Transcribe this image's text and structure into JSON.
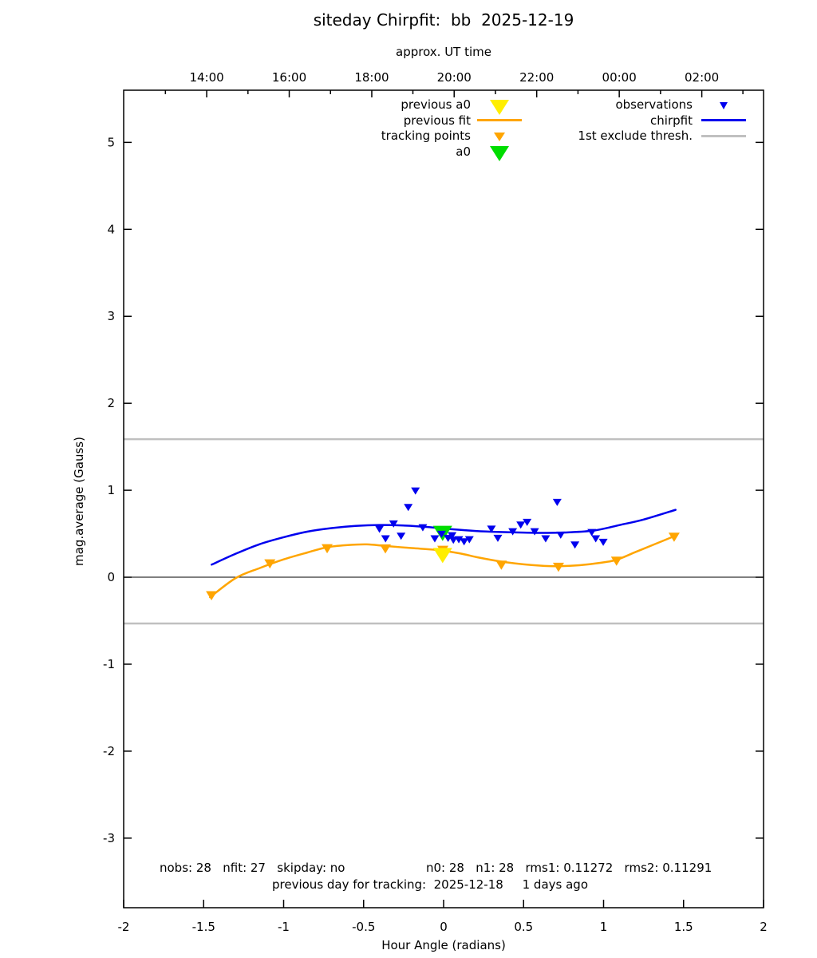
{
  "chart_data": {
    "type": "scatter",
    "title": "siteday Chirpfit:  bb  2025-12-19",
    "top_axis": {
      "label": "approx. UT time",
      "major_ticks": [
        {
          "label": "14:00",
          "h": -1.481
        },
        {
          "label": "16:00",
          "h": -0.965
        },
        {
          "label": "18:00",
          "h": -0.449
        },
        {
          "label": "20:00",
          "h": 0.066
        },
        {
          "label": "22:00",
          "h": 0.582
        },
        {
          "label": "00:00",
          "h": 1.098
        },
        {
          "label": "02:00",
          "h": 1.614
        }
      ],
      "minor_ticks_h": [
        -1.739,
        -1.223,
        -0.707,
        -0.192,
        0.324,
        0.84,
        1.356,
        1.871
      ]
    },
    "x_axis": {
      "label": "Hour Angle (radians)",
      "lim": [
        -2,
        2
      ],
      "ticks": [
        {
          "label": "-2",
          "v": -2
        },
        {
          "label": "-1.5",
          "v": -1.5
        },
        {
          "label": "-1",
          "v": -1
        },
        {
          "label": "-0.5",
          "v": -0.5
        },
        {
          "label": "0",
          "v": 0
        },
        {
          "label": "0.5",
          "v": 0.5
        },
        {
          "label": "1",
          "v": 1
        },
        {
          "label": "1.5",
          "v": 1.5
        },
        {
          "label": "2",
          "v": 2
        }
      ]
    },
    "y_axis": {
      "label": "mag.average (Gauss)",
      "lim": [
        -3.8,
        5.6
      ],
      "ticks": [
        {
          "label": "-3",
          "v": -3
        },
        {
          "label": "-2",
          "v": -2
        },
        {
          "label": "-1",
          "v": -1
        },
        {
          "label": "0",
          "v": 0
        },
        {
          "label": "1",
          "v": 1
        },
        {
          "label": "2",
          "v": 2
        },
        {
          "label": "3",
          "v": 3
        },
        {
          "label": "4",
          "v": 4
        },
        {
          "label": "5",
          "v": 5
        }
      ]
    },
    "grid": false,
    "zero_line": 0,
    "exclude_thresholds": [
      1.587,
      -0.532
    ],
    "colors": {
      "observations": "#0000ee",
      "chirpfit": "#0000ee",
      "previous_fit": "#ffa500",
      "tracking_points": "#ffa500",
      "previous_a0": "#ffee00",
      "a0": "#00dd00",
      "exclude_threshold": "#c0c0c0",
      "zero_line": "#000000"
    },
    "series": {
      "observations": [
        [
          -0.401,
          0.56
        ],
        [
          -0.363,
          0.45
        ],
        [
          -0.313,
          0.621
        ],
        [
          -0.266,
          0.48
        ],
        [
          -0.221,
          0.81
        ],
        [
          -0.176,
          1.0
        ],
        [
          -0.13,
          0.578
        ],
        [
          -0.055,
          0.45
        ],
        [
          -0.013,
          0.502
        ],
        [
          0.028,
          0.456
        ],
        [
          0.053,
          0.486
        ],
        [
          0.061,
          0.434
        ],
        [
          0.095,
          0.44
        ],
        [
          0.128,
          0.416
        ],
        [
          0.161,
          0.44
        ],
        [
          0.299,
          0.562
        ],
        [
          0.339,
          0.456
        ],
        [
          0.432,
          0.532
        ],
        [
          0.482,
          0.608
        ],
        [
          0.522,
          0.639
        ],
        [
          0.569,
          0.532
        ],
        [
          0.638,
          0.45
        ],
        [
          0.71,
          0.869
        ],
        [
          0.732,
          0.493
        ],
        [
          0.821,
          0.379
        ],
        [
          0.926,
          0.523
        ],
        [
          0.951,
          0.45
        ],
        [
          0.998,
          0.41
        ]
      ],
      "chirpfit_curve": [
        [
          -1.45,
          0.145
        ],
        [
          -1.3,
          0.27
        ],
        [
          -1.15,
          0.38
        ],
        [
          -1.0,
          0.46
        ],
        [
          -0.85,
          0.525
        ],
        [
          -0.7,
          0.565
        ],
        [
          -0.55,
          0.59
        ],
        [
          -0.4,
          0.6
        ],
        [
          -0.25,
          0.595
        ],
        [
          -0.1,
          0.578
        ],
        [
          0.05,
          0.552
        ],
        [
          0.2,
          0.532
        ],
        [
          0.35,
          0.52
        ],
        [
          0.5,
          0.513
        ],
        [
          0.65,
          0.51
        ],
        [
          0.8,
          0.518
        ],
        [
          0.95,
          0.54
        ],
        [
          1.1,
          0.6
        ],
        [
          1.25,
          0.663
        ],
        [
          1.45,
          0.775
        ]
      ],
      "previous_fit_curve": [
        [
          -1.46,
          -0.23
        ],
        [
          -1.3,
          -0.01
        ],
        [
          -1.15,
          0.105
        ],
        [
          -1.0,
          0.205
        ],
        [
          -0.85,
          0.285
        ],
        [
          -0.728,
          0.345
        ],
        [
          -0.6,
          0.37
        ],
        [
          -0.48,
          0.378
        ],
        [
          -0.364,
          0.36
        ],
        [
          -0.2,
          0.335
        ],
        [
          -0.05,
          0.315
        ],
        [
          0.1,
          0.275
        ],
        [
          0.21,
          0.23
        ],
        [
          0.36,
          0.18
        ],
        [
          0.5,
          0.148
        ],
        [
          0.63,
          0.13
        ],
        [
          0.72,
          0.127
        ],
        [
          0.85,
          0.138
        ],
        [
          0.97,
          0.163
        ],
        [
          1.08,
          0.2
        ],
        [
          1.2,
          0.29
        ],
        [
          1.32,
          0.38
        ],
        [
          1.44,
          0.471
        ]
      ],
      "tracking_points": [
        [
          -1.451,
          -0.202
        ],
        [
          -1.086,
          0.165
        ],
        [
          -0.728,
          0.339
        ],
        [
          -0.364,
          0.337
        ],
        [
          -0.005,
          0.321
        ],
        [
          0.361,
          0.15
        ],
        [
          0.718,
          0.126
        ],
        [
          1.081,
          0.195
        ],
        [
          1.441,
          0.471
        ]
      ],
      "previous_a0": [
        -0.006,
        0.272
      ],
      "a0": [
        -0.006,
        0.527
      ]
    },
    "legend": {
      "left": [
        {
          "label": "previous a0"
        },
        {
          "label": "previous fit"
        },
        {
          "label": "tracking points"
        },
        {
          "label": "a0"
        }
      ],
      "right": [
        {
          "label": "observations"
        },
        {
          "label": "chirpfit"
        },
        {
          "label": "1st exclude thresh."
        }
      ]
    },
    "stats": {
      "line1_left": "nobs: 28   nfit: 27   skipday: no",
      "line1_right": "n0: 28   n1: 28   rms1: 0.11272   rms2: 0.11291",
      "line2": "previous day for tracking:  2025-12-18     1 days ago"
    }
  }
}
